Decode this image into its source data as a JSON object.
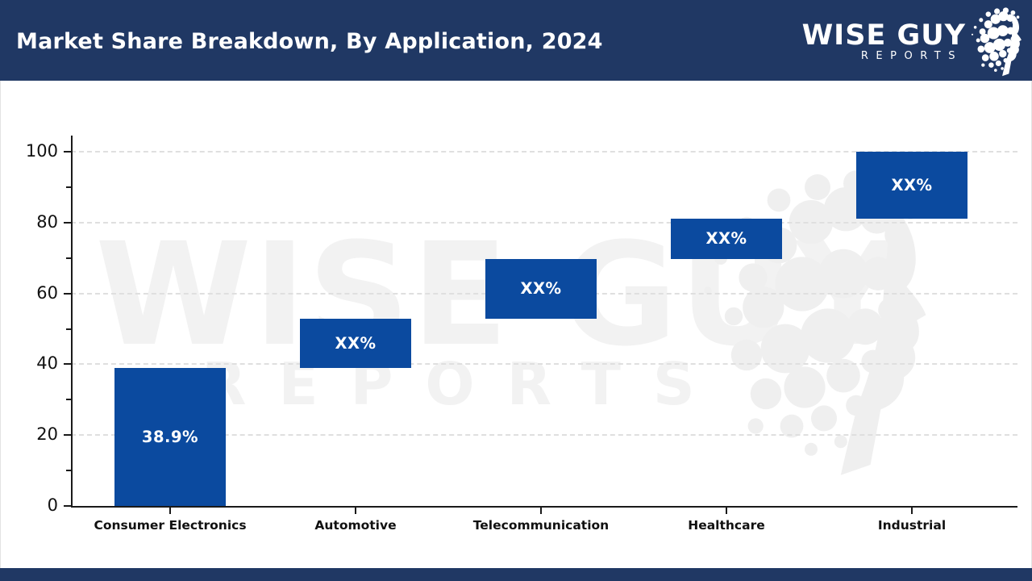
{
  "header": {
    "title": "Market Share Breakdown, By Application, 2024",
    "logo_line1": "WISE GUY",
    "logo_line2": "REPORTS"
  },
  "watermark": {
    "line1": "WISE GUY",
    "line2": "REPORTS"
  },
  "chart_data": {
    "type": "bar",
    "subtype": "waterfall-floating-bars",
    "title": "Market Share Breakdown, By Application, 2024",
    "categories": [
      "Consumer Electronics",
      "Automotive",
      "Telecommunication",
      "Healthcare",
      "Industrial"
    ],
    "segments": [
      {
        "category": "Consumer Electronics",
        "start": 0,
        "end": 38.9,
        "label": "38.9%"
      },
      {
        "category": "Automotive",
        "start": 38.9,
        "end": 52.8,
        "label": "XX%"
      },
      {
        "category": "Telecommunication",
        "start": 52.8,
        "end": 69.8,
        "label": "XX%"
      },
      {
        "category": "Healthcare",
        "start": 69.8,
        "end": 81.1,
        "label": "XX%"
      },
      {
        "category": "Industrial",
        "start": 81.1,
        "end": 100,
        "label": "XX%"
      }
    ],
    "values": [
      38.9,
      13.9,
      17.0,
      11.3,
      18.9
    ],
    "xlabel": "",
    "ylabel": "",
    "ylim": [
      0,
      100
    ],
    "yticks": [
      0,
      20,
      40,
      60,
      80,
      100
    ],
    "minor_yticks": [
      10,
      30,
      50,
      70,
      90
    ],
    "grid": "horizontal-dashed",
    "legend": "none"
  },
  "colors": {
    "header_bg": "#203864",
    "footer_bg": "#203864",
    "bar_fill": "#0b4a9f",
    "bar_label": "#ffffff",
    "grid_line": "#dfdfdf",
    "axis_line": "#1a1a1a",
    "tick_text": "#111111",
    "watermark": "#f2f2f2"
  }
}
